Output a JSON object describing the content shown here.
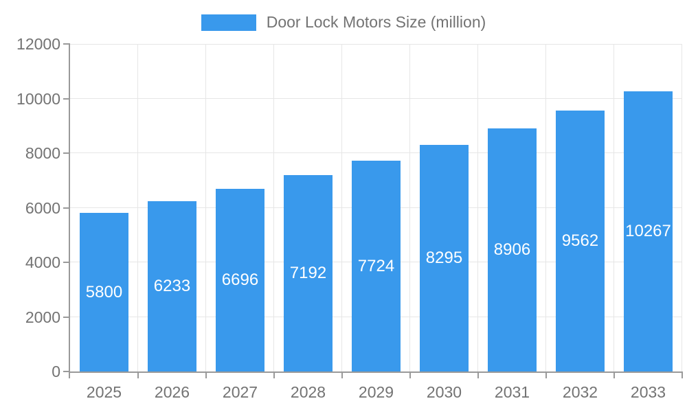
{
  "legend": {
    "label": "Door Lock Motors Size (million)"
  },
  "chart_data": {
    "type": "bar",
    "title": "Door Lock Motors Size (million)",
    "categories": [
      "2025",
      "2026",
      "2027",
      "2028",
      "2029",
      "2030",
      "2031",
      "2032",
      "2033"
    ],
    "values": [
      5800,
      6233,
      6696,
      7192,
      7724,
      8295,
      8906,
      9562,
      10267
    ],
    "xlabel": "",
    "ylabel": "",
    "ylim": [
      0,
      12000
    ],
    "y_ticks": [
      0,
      2000,
      4000,
      6000,
      8000,
      10000,
      12000
    ],
    "grid": true,
    "legend_position": "top-center",
    "bar_value_labels": "inside-center",
    "colors": {
      "bar": "#3999EC",
      "grid": "#E6E6E6",
      "axis": "#999999",
      "text": "#737373",
      "bar_label": "#FFFFFF",
      "background": "#FFFFFF"
    }
  }
}
